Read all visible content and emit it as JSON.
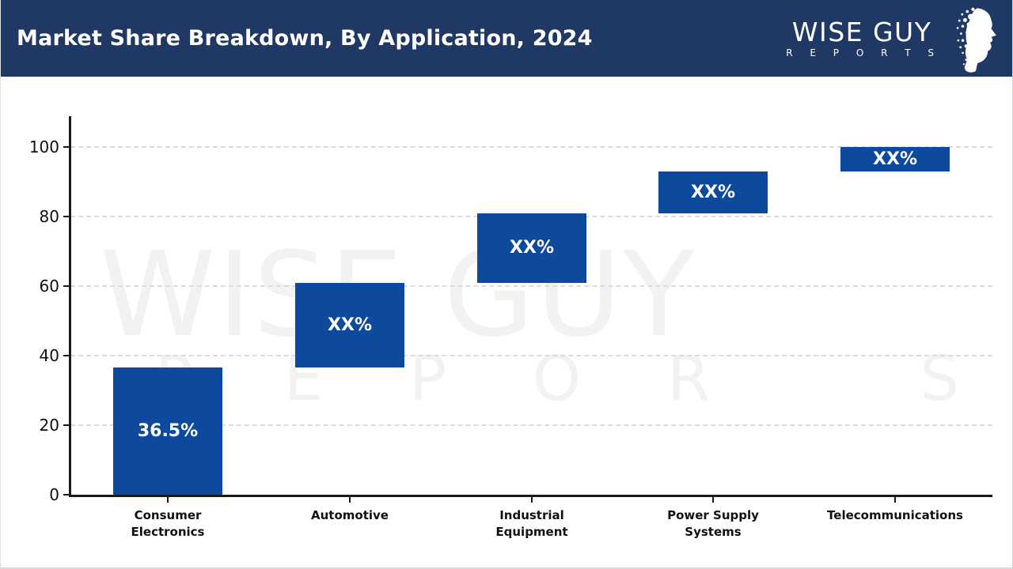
{
  "header": {
    "title": "Market Share Breakdown, By Application, 2024",
    "logo": {
      "line1": "WISE GUY",
      "line2": "R E P O R T S"
    }
  },
  "watermark": {
    "line1": "WISE GUY",
    "line2": "R E P O R T S"
  },
  "colors": {
    "header_bg": "#1f3864",
    "bar": "#0d4a9e",
    "bar_label": "#ffffff",
    "axis": "#1a1a1a",
    "watermark": "#f2f2f3"
  },
  "chart_data": {
    "type": "bar",
    "subtype": "waterfall-floating-bars",
    "title": "Market Share Breakdown, By Application, 2024",
    "categories": [
      "Consumer Electronics",
      "Automotive",
      "Industrial Equipment",
      "Power Supply Systems",
      "Telecommunications"
    ],
    "category_label_lines": [
      [
        "Consumer",
        "Electronics"
      ],
      [
        "Automotive"
      ],
      [
        "Industrial",
        "Equipment"
      ],
      [
        "Power Supply",
        "Systems"
      ],
      [
        "Telecommunications"
      ]
    ],
    "segments": [
      {
        "category": "Consumer Electronics",
        "start": 0,
        "end": 36.5,
        "label": "36.5%"
      },
      {
        "category": "Automotive",
        "start": 36.5,
        "end": 61,
        "label": "XX%"
      },
      {
        "category": "Industrial Equipment",
        "start": 61,
        "end": 81,
        "label": "XX%"
      },
      {
        "category": "Power Supply Systems",
        "start": 81,
        "end": 93,
        "label": "XX%"
      },
      {
        "category": "Telecommunications",
        "start": 93,
        "end": 100,
        "label": "XX%"
      }
    ],
    "yticks": [
      0,
      20,
      40,
      60,
      80,
      100
    ],
    "ylim": [
      0,
      108
    ],
    "xlabel": "",
    "ylabel": "",
    "grid": "horizontal-dashed",
    "legend": "none",
    "bar_color": "#0d4a9e",
    "bar_label_color": "#ffffff"
  }
}
